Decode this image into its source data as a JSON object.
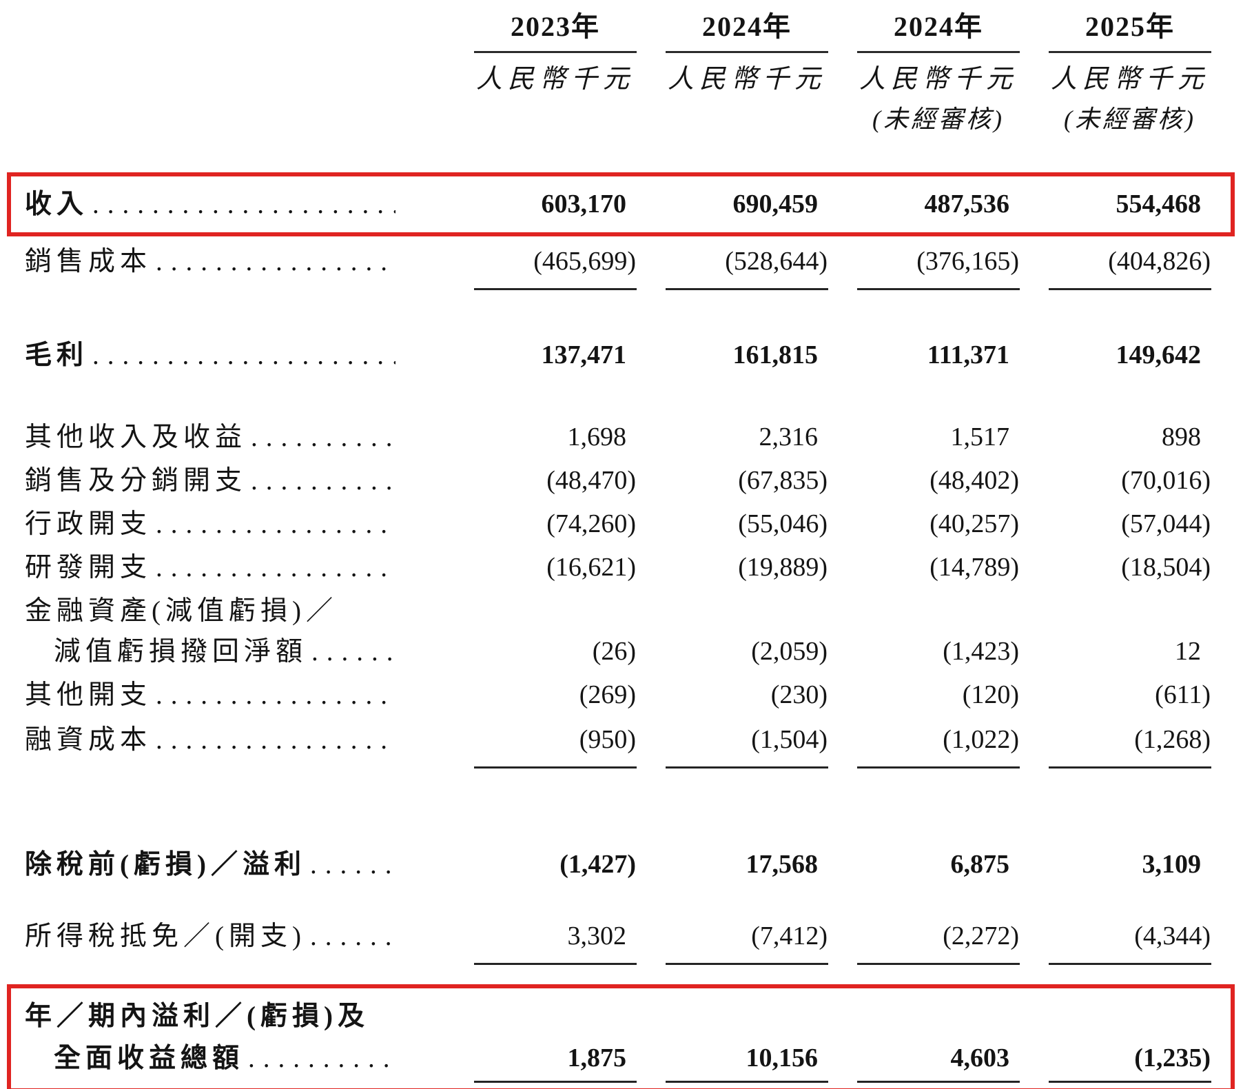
{
  "header": {
    "columns": [
      {
        "year": "2023年",
        "unit": "人民幣千元",
        "note": ""
      },
      {
        "year": "2024年",
        "unit": "人民幣千元",
        "note": ""
      },
      {
        "year": "2024年",
        "unit": "人民幣千元",
        "note": "(未經審核)"
      },
      {
        "year": "2025年",
        "unit": "人民幣千元",
        "note": "(未經審核)"
      }
    ]
  },
  "table": {
    "rows": [
      {
        "label": "收入",
        "v": [
          "603,170",
          "690,459",
          "487,536",
          "554,468"
        ]
      },
      {
        "label": "銷售成本",
        "v": [
          "(465,699)",
          "(528,644)",
          "(376,165)",
          "(404,826)"
        ]
      },
      {
        "label": "毛利",
        "v": [
          "137,471",
          "161,815",
          "111,371",
          "149,642"
        ]
      },
      {
        "label": "其他收入及收益",
        "v": [
          "1,698",
          "2,316",
          "1,517",
          "898"
        ]
      },
      {
        "label": "銷售及分銷開支",
        "v": [
          "(48,470)",
          "(67,835)",
          "(48,402)",
          "(70,016)"
        ]
      },
      {
        "label": "行政開支",
        "v": [
          "(74,260)",
          "(55,046)",
          "(40,257)",
          "(57,044)"
        ]
      },
      {
        "label": "研發開支",
        "v": [
          "(16,621)",
          "(19,889)",
          "(14,789)",
          "(18,504)"
        ]
      },
      {
        "label_line1": "金融資產(減值虧損)／",
        "label_line2": "減值虧損撥回淨額",
        "v": [
          "(26)",
          "(2,059)",
          "(1,423)",
          "12"
        ]
      },
      {
        "label": "其他開支",
        "v": [
          "(269)",
          "(230)",
          "(120)",
          "(611)"
        ]
      },
      {
        "label": "融資成本",
        "v": [
          "(950)",
          "(1,504)",
          "(1,022)",
          "(1,268)"
        ]
      },
      {
        "label": "除稅前(虧損)／溢利",
        "v": [
          "(1,427)",
          "17,568",
          "6,875",
          "3,109"
        ]
      },
      {
        "label": "所得稅抵免／(開支)",
        "v": [
          "3,302",
          "(7,412)",
          "(2,272)",
          "(4,344)"
        ]
      },
      {
        "label_line1": "年／期內溢利／(虧損)及",
        "label_line2": "全面收益總額",
        "v": [
          "1,875",
          "10,156",
          "4,603",
          "(1,235)"
        ]
      }
    ]
  }
}
